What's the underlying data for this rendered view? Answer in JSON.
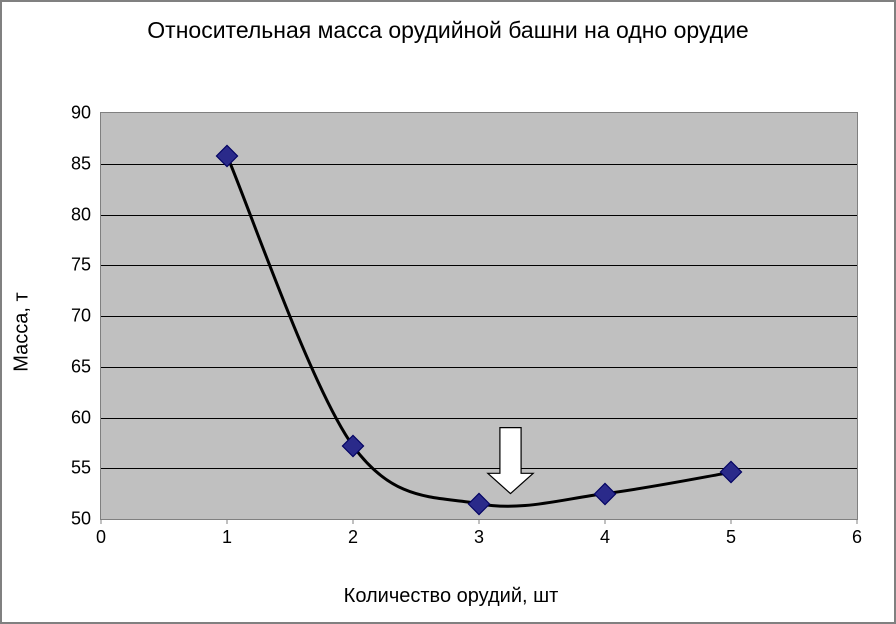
{
  "chart": {
    "type": "line",
    "title": "Относительная масса орудийной башни на одно орудие",
    "title_fontsize": 23,
    "xlabel": "Количество орудий, шт",
    "ylabel": "Масса, т",
    "label_fontsize": 20,
    "tick_fontsize": 18,
    "xlim": [
      0,
      6
    ],
    "ylim": [
      50,
      90
    ],
    "xtick_step": 1,
    "ytick_step": 5,
    "xticks": [
      0,
      1,
      2,
      3,
      4,
      5,
      6
    ],
    "yticks": [
      50,
      55,
      60,
      65,
      70,
      75,
      80,
      85,
      90
    ],
    "background_color": "#ffffff",
    "plot_background_color": "#c0c0c0",
    "grid_color": "#000000",
    "border_color": "#808080",
    "line_color": "#000000",
    "line_width": 3,
    "marker_style": "diamond",
    "marker_color": "#2a2a8a",
    "marker_border": "#000060",
    "marker_size": 14,
    "series": {
      "x": [
        1,
        2,
        3,
        4,
        5
      ],
      "y": [
        85.8,
        57.2,
        51.5,
        52.5,
        54.6
      ]
    },
    "annotation_arrow": {
      "x": 3.25,
      "y_from": 59,
      "y_to": 52.5,
      "stroke": "#000000",
      "fill": "#ffffff"
    }
  }
}
